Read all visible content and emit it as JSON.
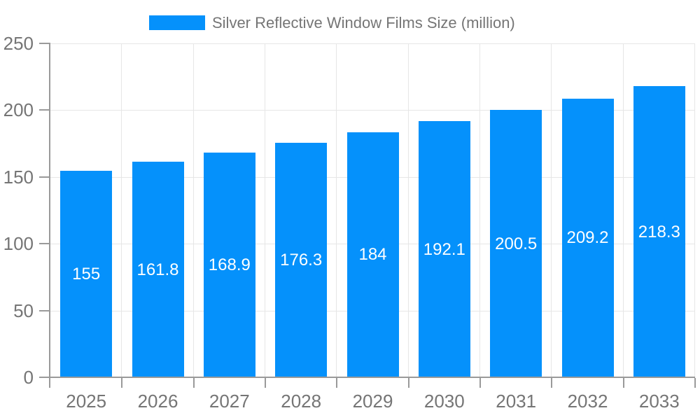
{
  "legend": {
    "label": "Silver Reflective Window Films Size (million)"
  },
  "chart_data": {
    "type": "bar",
    "title": "Silver Reflective Window Films Size (million)",
    "categories": [
      "2025",
      "2026",
      "2027",
      "2028",
      "2029",
      "2030",
      "2031",
      "2032",
      "2033"
    ],
    "values": [
      155,
      161.8,
      168.9,
      176.3,
      184,
      192.1,
      200.5,
      209.2,
      218.3
    ],
    "value_labels": [
      "155",
      "161.8",
      "168.9",
      "176.3",
      "184",
      "192.1",
      "200.5",
      "209.2",
      "218.3"
    ],
    "yticks": [
      0,
      50,
      100,
      150,
      200,
      250
    ],
    "ytick_labels": [
      "0",
      "50",
      "100",
      "150",
      "200",
      "250"
    ],
    "ylim": [
      0,
      250
    ],
    "xlabel": "",
    "ylabel": "",
    "grid": true,
    "legend_position": "top",
    "colors": {
      "bar": "#0591fb",
      "bar_value_text": "#ffffff",
      "axis_text": "#757575",
      "legend_text": "#757575",
      "gridline": "#e6e6e6",
      "axis_line": "#9a9a9a"
    }
  }
}
